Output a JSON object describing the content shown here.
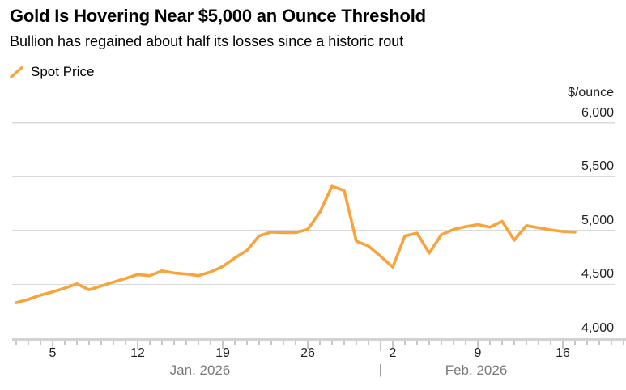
{
  "header": {
    "title": "Gold Is Hovering Near $5,000 an Ounce Threshold",
    "subtitle": "Bullion has regained about half its losses since a historic rout"
  },
  "legend": {
    "items": [
      {
        "label": "Spot Price",
        "icon": "line-slash-icon",
        "color": "#F8A33C"
      }
    ]
  },
  "colors": {
    "line": "#F8A33C",
    "gridline": "#D9D9D9",
    "axis_line": "#D2D2D2",
    "tick_mark": "#8F8F8F",
    "tick_label": "#1F1F1F",
    "month_label": "#7A7A7A",
    "text": "#000000",
    "background": "#FFFFFF"
  },
  "chart_data": {
    "type": "line",
    "title": "Gold Is Hovering Near $5,000 an Ounce Threshold",
    "subtitle": "Bullion has regained about half its losses since a historic rout",
    "ylabel": "$/ounce",
    "ylim": [
      4000,
      6000
    ],
    "grid": "horizontal",
    "legend_position": "top-left",
    "series": [
      {
        "name": "Spot Price",
        "color": "#F8A33C",
        "dates": [
          "Jan 2",
          "Jan 3",
          "Jan 4",
          "Jan 5",
          "Jan 6",
          "Jan 7",
          "Jan 8",
          "Jan 9",
          "Jan 10",
          "Jan 11",
          "Jan 12",
          "Jan 13",
          "Jan 14",
          "Jan 15",
          "Jan 16",
          "Jan 17",
          "Jan 18",
          "Jan 19",
          "Jan 20",
          "Jan 21",
          "Jan 22",
          "Jan 23",
          "Jan 24",
          "Jan 25",
          "Jan 26",
          "Jan 27",
          "Jan 28",
          "Jan 29",
          "Jan 30",
          "Jan 31",
          "Feb 1",
          "Feb 2",
          "Feb 3",
          "Feb 4",
          "Feb 5",
          "Feb 6",
          "Feb 7",
          "Feb 8",
          "Feb 9",
          "Feb 10",
          "Feb 11",
          "Feb 12",
          "Feb 13",
          "Feb 14",
          "Feb 15",
          "Feb 16",
          "Feb 17"
        ],
        "values": [
          4330,
          4360,
          4400,
          4430,
          4465,
          4505,
          4450,
          4485,
          4520,
          4555,
          4590,
          4580,
          4625,
          4605,
          4595,
          4580,
          4615,
          4665,
          4745,
          4815,
          4950,
          4985,
          4980,
          4980,
          5010,
          5170,
          5410,
          5370,
          4900,
          4855,
          4760,
          4660,
          4950,
          4975,
          4790,
          4960,
          5010,
          5035,
          5055,
          5030,
          5085,
          4910,
          5045,
          5025,
          5005,
          4990,
          4985
        ]
      }
    ],
    "y_axis": {
      "unit_label": "$/ounce",
      "ticks": [
        {
          "label": "6,000",
          "value": 6000
        },
        {
          "label": "5,500",
          "value": 5500
        },
        {
          "label": "5,000",
          "value": 5000
        },
        {
          "label": "4,500",
          "value": 4500
        },
        {
          "label": "4,000",
          "value": 4000
        }
      ]
    },
    "x_axis": {
      "major_ticks": [
        {
          "label": "5",
          "date": "Jan 5"
        },
        {
          "label": "12",
          "date": "Jan 12"
        },
        {
          "label": "19",
          "date": "Jan 19"
        },
        {
          "label": "26",
          "date": "Jan 26"
        },
        {
          "label": "2",
          "date": "Feb 2"
        },
        {
          "label": "9",
          "date": "Feb 9"
        },
        {
          "label": "16",
          "date": "Feb 16"
        }
      ],
      "minor_tick_interval": "daily",
      "month_labels": [
        "Jan. 2026",
        "Feb. 2026"
      ],
      "month_separator": "|",
      "month_boundary_date": "Feb 1"
    }
  }
}
